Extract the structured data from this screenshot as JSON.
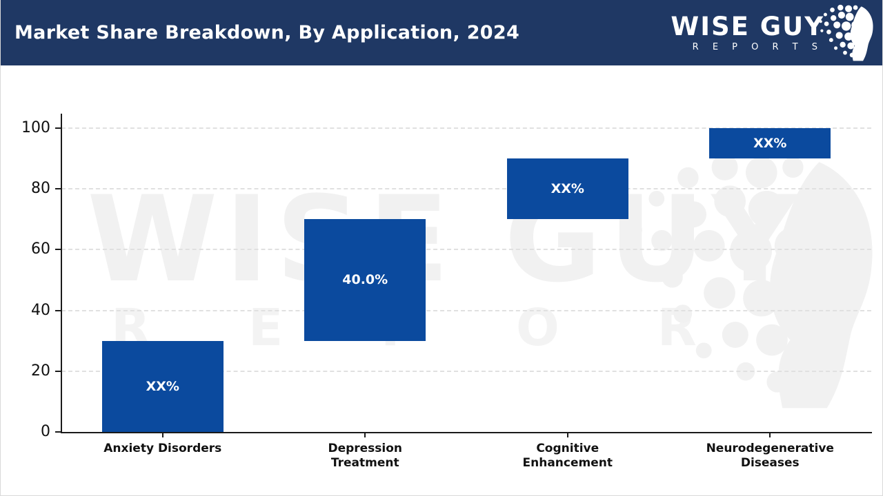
{
  "header": {
    "title": "Market Share Breakdown, By Application, 2024",
    "logo": {
      "line1": "WISE GUY",
      "line2": "R E P O R T S"
    }
  },
  "watermark": {
    "line1": "WISE GUY",
    "line2": "R E P O R T S"
  },
  "colors": {
    "header_bg": "#1f3864",
    "bar": "#0b4a9e",
    "grid": "#e0e0e0",
    "axis": "#1a1a1a",
    "watermark": "#f1f1f1"
  },
  "chart_data": {
    "type": "bar",
    "variant": "waterfall",
    "title": "Market Share Breakdown, By Application, 2024",
    "categories": [
      [
        "Anxiety Disorders"
      ],
      [
        "Depression",
        "Treatment"
      ],
      [
        "Cognitive",
        "Enhancement"
      ],
      [
        "Neurodegenerative",
        "Diseases"
      ]
    ],
    "segments": [
      {
        "category": "Anxiety Disorders",
        "start": 0,
        "end": 30,
        "value_label": "XX%"
      },
      {
        "category": "Depression Treatment",
        "start": 30,
        "end": 70,
        "value_label": "40.0%"
      },
      {
        "category": "Cognitive Enhancement",
        "start": 70,
        "end": 90,
        "value_label": "XX%"
      },
      {
        "category": "Neurodegenerative Diseases",
        "start": 90,
        "end": 100,
        "value_label": "XX%"
      }
    ],
    "ylim": [
      0,
      100
    ],
    "yticks": [
      0,
      20,
      40,
      60,
      80,
      100
    ],
    "xlabel": "",
    "ylabel": "",
    "grid": "dashed-horizontal",
    "legend": "none",
    "bar_color": "#0b4a9e",
    "value_label_color": "#ffffff"
  }
}
